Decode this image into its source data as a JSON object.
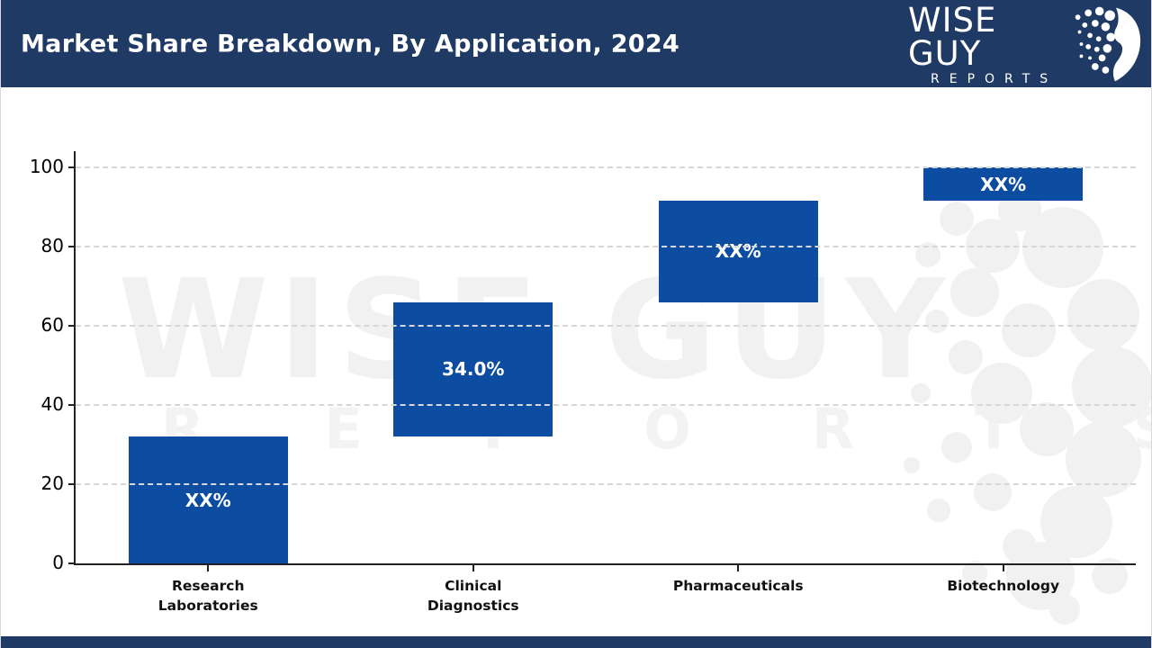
{
  "header": {
    "title": "Market Share Breakdown, By Application, 2024",
    "logo": {
      "line1": "WISE GUY",
      "line2": "REPORTS"
    }
  },
  "watermark": {
    "line1": "WISE GUY",
    "line2": "R E P O R T S"
  },
  "colors": {
    "header_bg": "#203a66",
    "bar": "#0c4da2",
    "grid": "#d7d7d7",
    "axis": "#222222",
    "bar_label": "#ffffff",
    "watermark": "#f1f1f1"
  },
  "chart_data": {
    "type": "bar",
    "subtype": "waterfall",
    "title": "Market Share Breakdown, By Application, 2024",
    "categories": [
      "Research\nLaboratories",
      "Clinical\nDiagnostics",
      "Pharmaceuticals",
      "Biotechnology"
    ],
    "segments": [
      {
        "category": "Research Laboratories",
        "start": 0,
        "end": 32,
        "label": "XX%"
      },
      {
        "category": "Clinical Diagnostics",
        "start": 32,
        "end": 66,
        "label": "34.0%"
      },
      {
        "category": "Pharmaceuticals",
        "start": 66,
        "end": 91.5,
        "label": "XX%"
      },
      {
        "category": "Biotechnology",
        "start": 91.5,
        "end": 100,
        "label": "XX%"
      }
    ],
    "values": [
      32,
      34,
      25.5,
      8.5
    ],
    "ylim": [
      0,
      100
    ],
    "yticks": [
      0,
      20,
      40,
      60,
      80,
      100
    ],
    "xlabel": "",
    "ylabel": "",
    "grid": "horizontal-dashed",
    "legend": "none",
    "bar_width_fraction": 0.6
  }
}
